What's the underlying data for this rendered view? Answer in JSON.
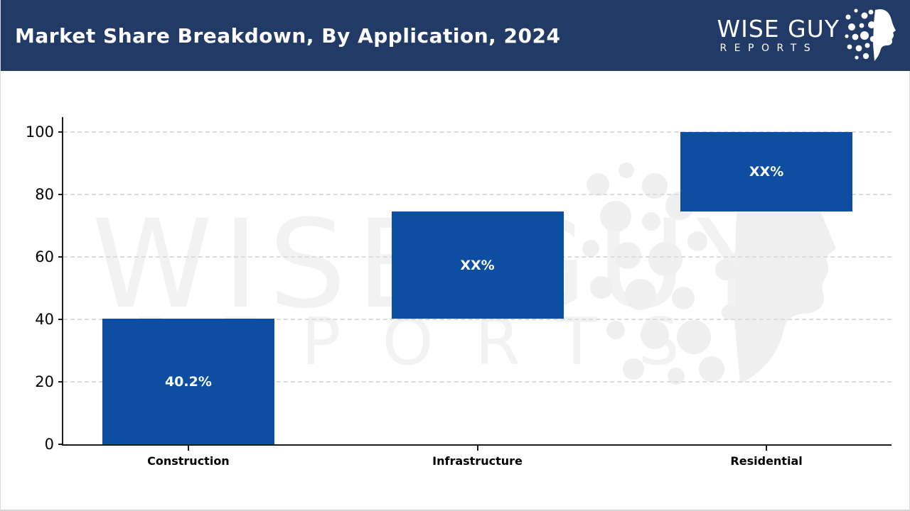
{
  "header": {
    "title": "Market Share Breakdown, By Application, 2024",
    "logo": {
      "line1": "WISE GUY",
      "line2": "REPORTS"
    }
  },
  "watermark": {
    "line1": "WISE GUY",
    "line2": "REPORTS"
  },
  "chart_data": {
    "type": "bar",
    "subtype": "floating-waterfall",
    "title": "Market Share Breakdown, By Application, 2024",
    "categories": [
      "Construction",
      "Infrastructure",
      "Residential"
    ],
    "segments": [
      {
        "category": "Construction",
        "start": 0,
        "end": 40.2,
        "label": "40.2%"
      },
      {
        "category": "Infrastructure",
        "start": 40.2,
        "end": 74.5,
        "label": "XX%"
      },
      {
        "category": "Residential",
        "start": 74.5,
        "end": 100,
        "label": "XX%"
      }
    ],
    "yticks": [
      0,
      20,
      40,
      60,
      80,
      100
    ],
    "ylim": [
      0,
      100
    ],
    "xlabel": "",
    "ylabel": "",
    "grid": true,
    "gridline_style": "dashed",
    "legend": "none"
  },
  "colors": {
    "header_bg": "#213a66",
    "bar": "#0d4da2",
    "bar_label": "#ffffff",
    "axis": "#1a1a1a",
    "gridline": "#dcdcdc",
    "watermark": "#f2f2f2"
  }
}
